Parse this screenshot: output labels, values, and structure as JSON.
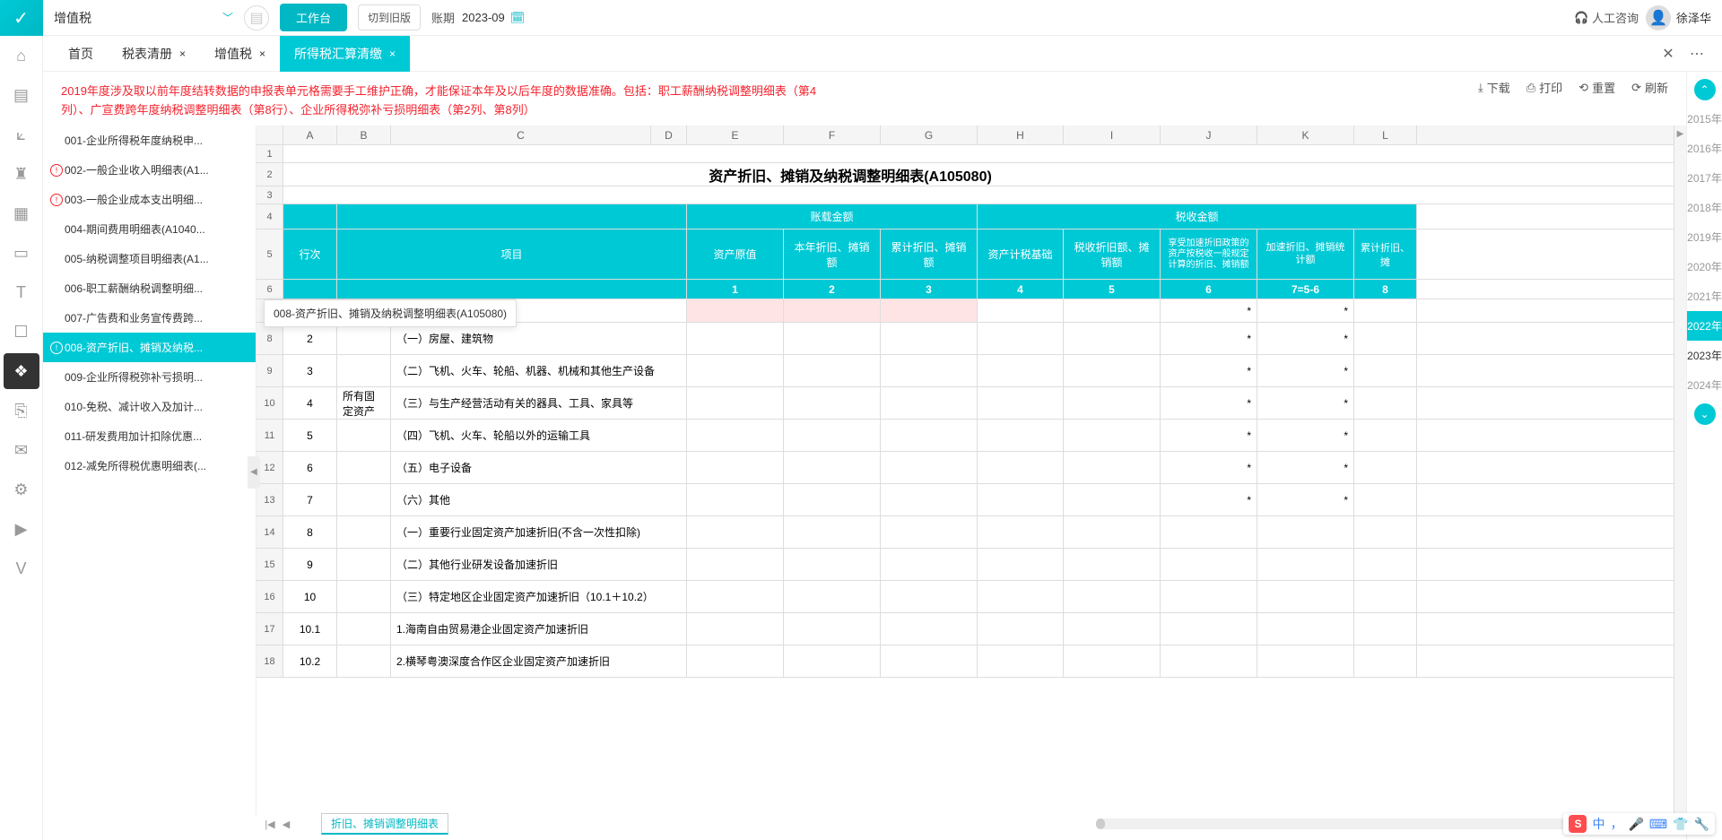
{
  "theme": {
    "primary": "#00c9d6",
    "primary_dark": "#00b8c4",
    "danger": "#f5222d",
    "pink": "#ffe4e6",
    "border": "#dddddd",
    "text": "#333333",
    "muted": "#999999"
  },
  "topbar": {
    "dropdown_label": "增值税",
    "btn_workspace": "工作台",
    "btn_old": "切到旧版",
    "period_label": "账期",
    "period_value": "2023-09",
    "consult": "人工咨询",
    "username": "徐泽华"
  },
  "tabs": [
    {
      "label": "首页",
      "closable": false,
      "active": false
    },
    {
      "label": "税表清册",
      "closable": true,
      "active": false
    },
    {
      "label": "增值税",
      "closable": true,
      "active": false
    },
    {
      "label": "所得税汇算清缴",
      "closable": true,
      "active": true
    }
  ],
  "notice": "2019年度涉及取以前年度结转数据的申报表单元格需要手工维护正确，才能保证本年及以后年度的数据准确。包括：职工薪酬纳税调整明细表（第4列）、广宣费跨年度纳税调整明细表（第8行）、企业所得税弥补亏损明细表（第2列、第8列）",
  "actions": {
    "download": "下载",
    "print": "打印",
    "reset": "重置",
    "refresh": "刷新"
  },
  "sidelist": [
    {
      "id": "001",
      "label": "001-企业所得税年度纳税申...",
      "warn": false,
      "active": false
    },
    {
      "id": "002",
      "label": "002-一般企业收入明细表(A1...",
      "warn": true,
      "active": false
    },
    {
      "id": "003",
      "label": "003-一般企业成本支出明细...",
      "warn": true,
      "active": false
    },
    {
      "id": "004",
      "label": "004-期间费用明细表(A1040...",
      "warn": false,
      "active": false
    },
    {
      "id": "005",
      "label": "005-纳税调整项目明细表(A1...",
      "warn": false,
      "active": false
    },
    {
      "id": "006",
      "label": "006-职工薪酬纳税调整明细...",
      "warn": false,
      "active": false
    },
    {
      "id": "007",
      "label": "007-广告费和业务宣传费跨...",
      "warn": false,
      "active": false
    },
    {
      "id": "008",
      "label": "008-资产折旧、摊销及纳税...",
      "warn": true,
      "active": true
    },
    {
      "id": "009",
      "label": "009-企业所得税弥补亏损明...",
      "warn": false,
      "active": false
    },
    {
      "id": "010",
      "label": "010-免税、减计收入及加计...",
      "warn": false,
      "active": false
    },
    {
      "id": "011",
      "label": "011-研发费用加计扣除优惠...",
      "warn": false,
      "active": false
    },
    {
      "id": "012",
      "label": "012-减免所得税优惠明细表(...",
      "warn": false,
      "active": false
    }
  ],
  "tooltip": "008-资产折旧、摊销及纳税调整明细表(A105080)",
  "sheet": {
    "tab_label": "折旧、摊销调整明细表",
    "columns": [
      "A",
      "B",
      "C",
      "D",
      "E",
      "F",
      "G",
      "H",
      "I",
      "J",
      "K",
      "L"
    ],
    "title": "资产折旧、摊销及纳税调整明细表(A105080)",
    "header1": {
      "col_a": "行次",
      "col_bcd": "项目",
      "group1": "账载金额",
      "group2": "税收金额"
    },
    "header2": {
      "e": "资产原值",
      "f": "本年折旧、摊销额",
      "g": "累计折旧、摊销额",
      "h": "资产计税基础",
      "i": "税收折旧额、摊销额",
      "j": "享受加速折旧政策的资产按税收一般规定计算的折旧、摊销额",
      "k": "加速折旧、摊销统计额",
      "l": "累计折旧、摊"
    },
    "header3": {
      "e": "1",
      "f": "2",
      "g": "3",
      "h": "4",
      "i": "5",
      "j": "6",
      "k": "7=5-6",
      "l": "8"
    },
    "rows": [
      {
        "rn": 7,
        "a": "",
        "b": "",
        "c": "",
        "star": true,
        "pink": true
      },
      {
        "rn": 8,
        "a": "2",
        "b": "",
        "c": "（一）房屋、建筑物",
        "star": true
      },
      {
        "rn": 9,
        "a": "3",
        "b": "",
        "c": "（二）飞机、火车、轮船、机器、机械和其他生产设备",
        "star": true
      },
      {
        "rn": 10,
        "a": "4",
        "b": "",
        "c": "（三）与生产经营活动有关的器具、工具、家具等",
        "star": true
      },
      {
        "rn": 11,
        "a": "5",
        "b": "",
        "c": "（四）飞机、火车、轮船以外的运输工具",
        "star": true
      },
      {
        "rn": 12,
        "a": "6",
        "b": "",
        "c": "（五）电子设备",
        "star": true
      },
      {
        "rn": 13,
        "a": "7",
        "b": "",
        "c": "（六）其他",
        "star": true
      },
      {
        "rn": 14,
        "a": "8",
        "b": "",
        "c": "（一）重要行业固定资产加速折旧(不含一次性扣除)",
        "star": false
      },
      {
        "rn": 15,
        "a": "9",
        "b": "",
        "c": "（二）其他行业研发设备加速折旧",
        "star": false
      },
      {
        "rn": 16,
        "a": "10",
        "b": "",
        "c": "（三）特定地区企业固定资产加速折旧（10.1＋10.2）",
        "star": false
      },
      {
        "rn": 17,
        "a": "10.1",
        "b": "",
        "c": "1.海南自由贸易港企业固定资产加速折旧",
        "star": false
      },
      {
        "rn": 18,
        "a": "10.2",
        "b": "",
        "c": "2.横琴粤澳深度合作区企业固定资产加速折旧",
        "star": false
      }
    ],
    "merged_b": "所有固定资产"
  },
  "years": [
    "2015年",
    "2016年",
    "2017年",
    "2018年",
    "2019年",
    "2020年",
    "2021年",
    "2022年",
    "2023年",
    "2024年"
  ],
  "year_active": "2022年",
  "year_dark": "2023年",
  "ime": {
    "label": "中"
  }
}
